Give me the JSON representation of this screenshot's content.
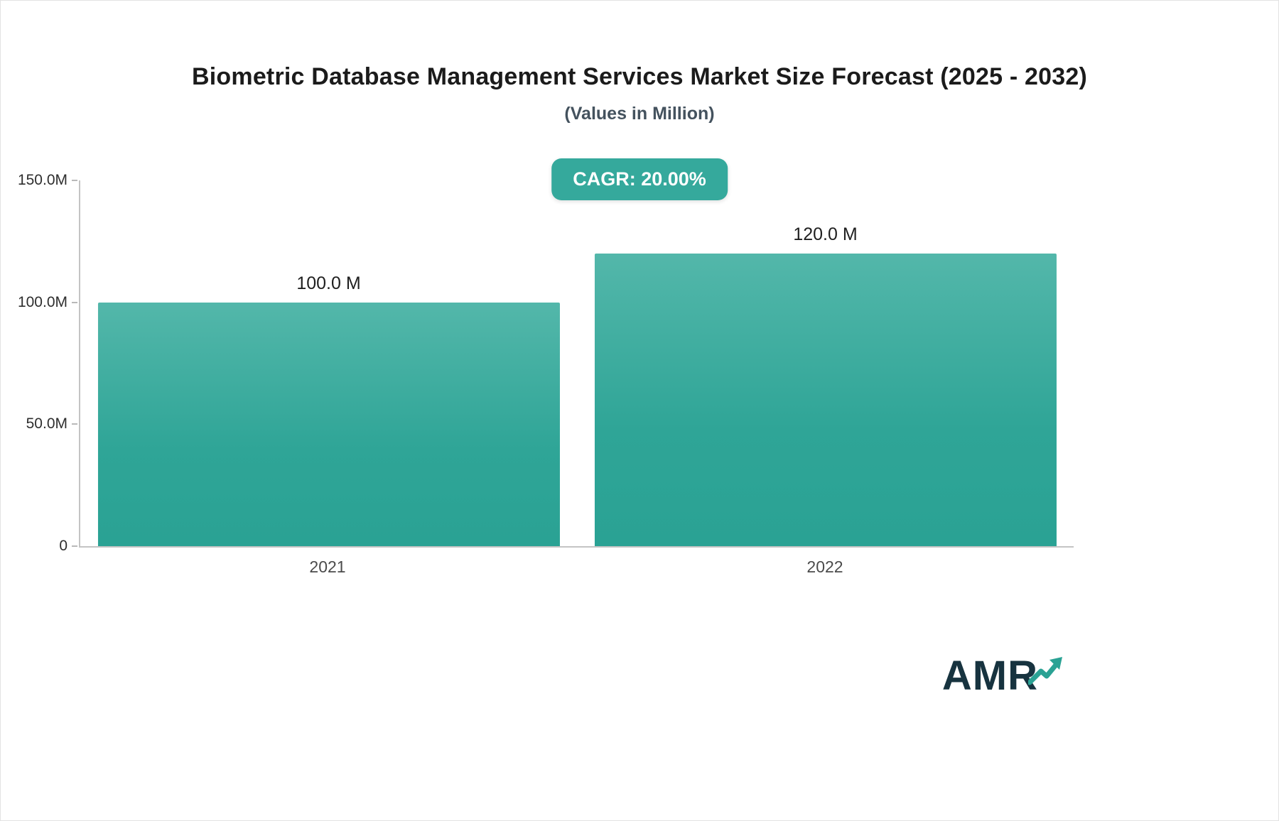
{
  "chart": {
    "title": "Biometric Database Management Services Market Size Forecast (2025 - 2032)",
    "subtitle": "(Values in Million)",
    "cagr_label": "CAGR: 20.00%"
  },
  "chart_data": {
    "type": "bar",
    "title": "Biometric Database Management Services Market Size Forecast (2025 - 2032)",
    "subtitle": "(Values in Million)",
    "categories": [
      "2021",
      "2022"
    ],
    "values": [
      100.0,
      120.0
    ],
    "value_labels": [
      "100.0 M",
      "120.0 M"
    ],
    "xlabel": "",
    "ylabel": "",
    "ylim": [
      0,
      150
    ],
    "y_ticks": [
      {
        "label": "150.0M",
        "value": 150
      },
      {
        "label": "100.0M",
        "value": 100
      },
      {
        "label": "50.0M",
        "value": 50
      },
      {
        "label": "0",
        "value": 0
      }
    ],
    "grid": false,
    "legend": "none",
    "annotations": [
      "CAGR: 20.00%"
    ],
    "bar_color_top": "#53b7aa",
    "bar_color_bottom": "#2aa294"
  },
  "logo": {
    "text": "AMR"
  }
}
